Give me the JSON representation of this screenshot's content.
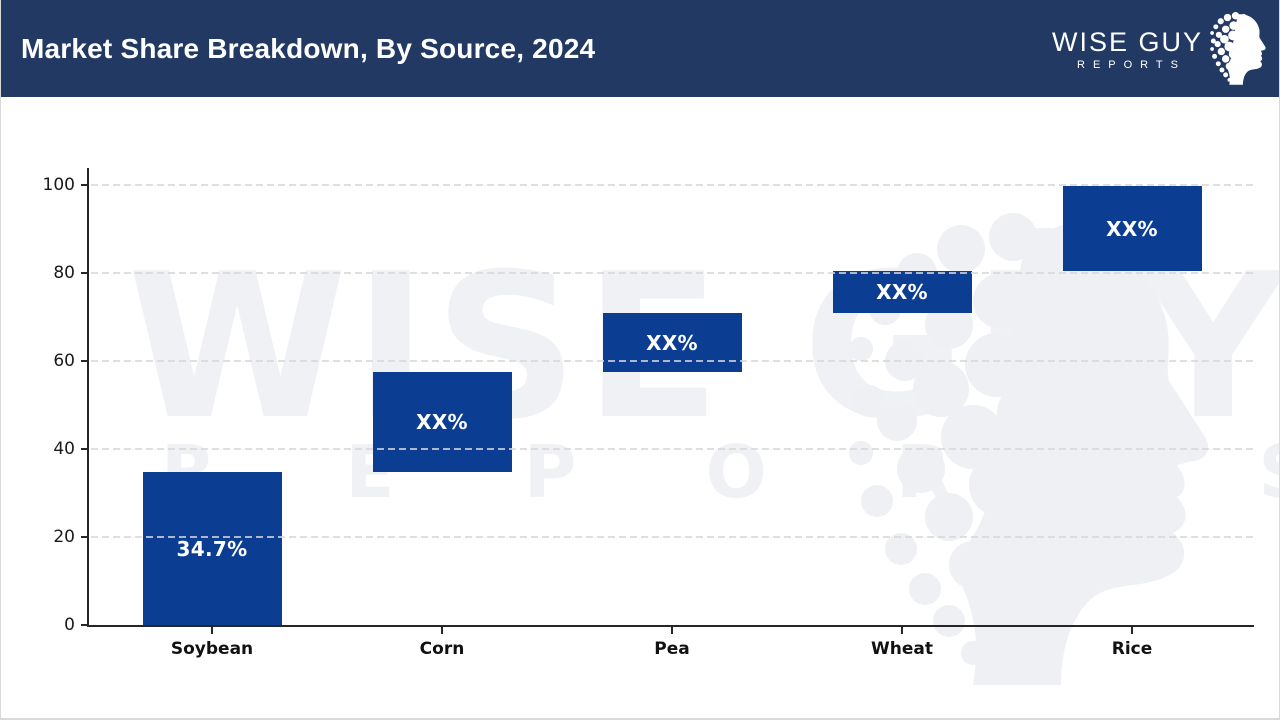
{
  "header": {
    "title": "Market Share Breakdown, By Source, 2024",
    "logo_line1": "WISE GUY",
    "logo_line2": "REPORTS",
    "bg_color": "#223963"
  },
  "watermark": {
    "line1": "WISE GUY",
    "line2": "R E P O R T S"
  },
  "chart_data": {
    "type": "bar",
    "subtype": "waterfall",
    "title": "Market Share Breakdown, By Source, 2024",
    "categories": [
      "Soybean",
      "Corn",
      "Pea",
      "Wheat",
      "Rice"
    ],
    "bars": [
      {
        "label": "Soybean",
        "start": 0,
        "end": 34.7,
        "value_label": "34.7%"
      },
      {
        "label": "Corn",
        "start": 34.7,
        "end": 57.4,
        "value_label": "XX%"
      },
      {
        "label": "Pea",
        "start": 57.4,
        "end": 70.9,
        "value_label": "XX%"
      },
      {
        "label": "Wheat",
        "start": 70.9,
        "end": 80.4,
        "value_label": "XX%"
      },
      {
        "label": "Rice",
        "start": 80.4,
        "end": 99.8,
        "value_label": "XX%"
      }
    ],
    "y_ticks": [
      0,
      20,
      40,
      60,
      80,
      100
    ],
    "ylim": [
      0,
      105
    ],
    "xlabel": "",
    "ylabel": "",
    "grid": true,
    "legend": false,
    "bar_color": "#0b3e93",
    "grid_color": "#d7d7d7",
    "axis_color": "#262626"
  }
}
